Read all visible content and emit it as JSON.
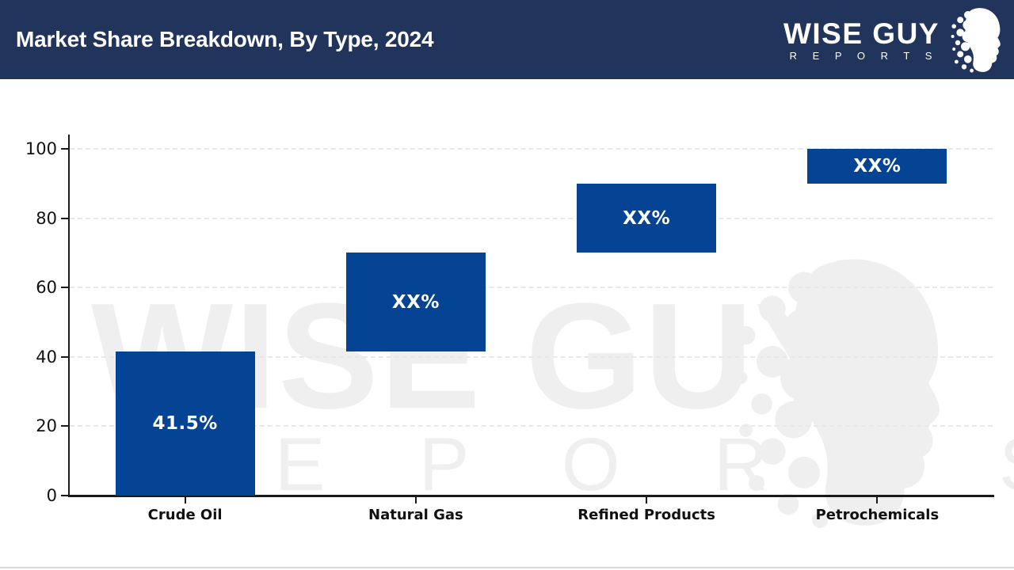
{
  "header": {
    "title": "Market Share Breakdown, By Type, 2024",
    "bg_color": "#21345C",
    "logo": {
      "name": "WISE GUY",
      "sub": "R E P O R T S"
    }
  },
  "watermark": {
    "line1": "WISE GUY",
    "line2": "R E P O R T S",
    "color": "#efefef"
  },
  "chart_data": {
    "type": "bar",
    "subtype": "waterfall",
    "title": "Market Share Breakdown, By Type, 2024",
    "categories": [
      "Crude Oil",
      "Natural Gas",
      "Refined Products",
      "Petrochemicals"
    ],
    "segments": [
      {
        "category": "Crude Oil",
        "start": 0,
        "end": 41.5,
        "label": "41.5%"
      },
      {
        "category": "Natural Gas",
        "start": 41.5,
        "end": 70,
        "label": "XX%"
      },
      {
        "category": "Refined Products",
        "start": 70,
        "end": 90,
        "label": "XX%"
      },
      {
        "category": "Petrochemicals",
        "start": 90,
        "end": 100,
        "label": "XX%"
      }
    ],
    "ylim": [
      0,
      100
    ],
    "yticks": [
      "0",
      "20",
      "40",
      "60",
      "80",
      "100"
    ],
    "bar_color": "#054394",
    "grid": "dashed-horizontal",
    "gridline_color": "#e8e8e8",
    "axis_color": "#1a1a1a",
    "legend_position": "none"
  }
}
